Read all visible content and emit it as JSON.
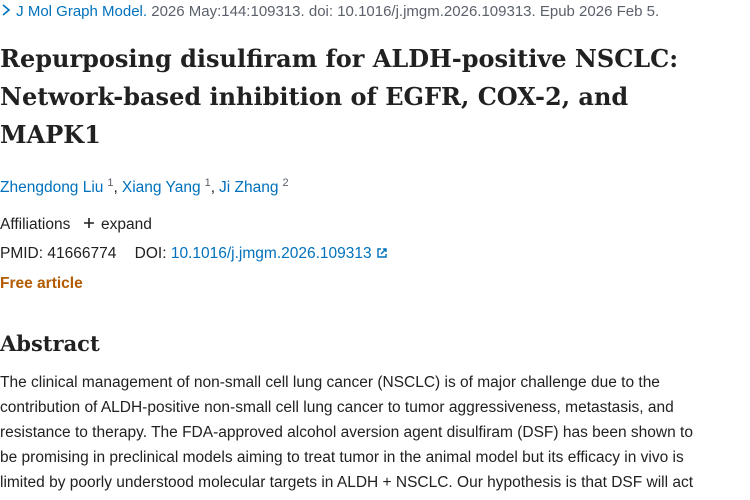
{
  "citation": {
    "journal": "J Mol Graph Model.",
    "details": "2026 May:144:109313. doi: 10.1016/j.jmgm.2026.109313. Epub 2026 Feb 5."
  },
  "title": [
    "Repurposing disulfiram for ALDH-positive NSCLC:",
    "Network-based inhibition of EGFR, COX-2, and",
    "MAPK1"
  ],
  "authors": {
    "separator": ",",
    "list": [
      {
        "name": "Zhengdong Liu",
        "affiliation": "1"
      },
      {
        "name": "Xiang Yang",
        "affiliation": "1"
      },
      {
        "name": "Ji Zhang",
        "affiliation": "2"
      }
    ]
  },
  "affiliations": {
    "label": "Affiliations",
    "toggle": "expand"
  },
  "identifiers": {
    "pmid_label": "PMID:",
    "pmid": "41666774",
    "doi_label": "DOI:",
    "doi": "10.1016/j.jmgm.2026.109313"
  },
  "free_article": "Free article",
  "abstract": {
    "heading": "Abstract",
    "lines": [
      "The clinical management of non-small cell lung cancer (NSCLC) is of major challenge due to the",
      "contribution of ALDH-positive non-small cell lung cancer to tumor aggressiveness, metastasis, and",
      "resistance to therapy. The FDA-approved alcohol aversion agent disulfiram (DSF) has been shown to",
      "be promising in preclinical models aiming to treat tumor in the animal model but its efficacy in vivo is",
      "limited by poorly understood molecular targets in ALDH + NSCLC. Our hypothesis is that DSF will act"
    ]
  }
}
